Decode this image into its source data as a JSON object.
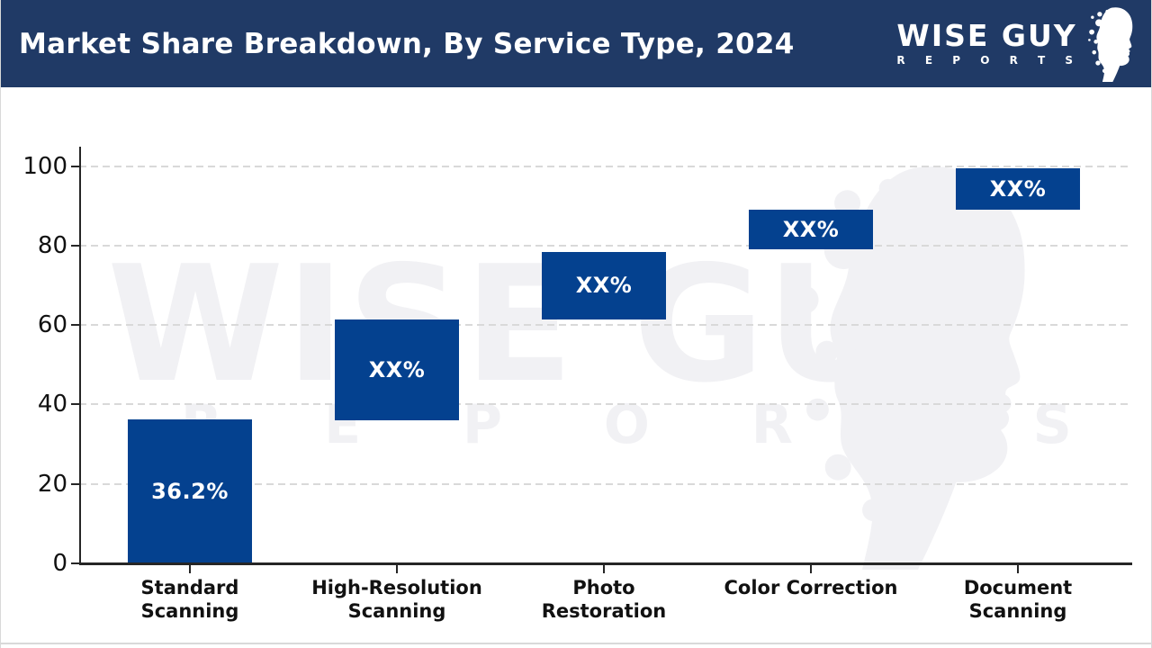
{
  "header": {
    "title": "Market Share Breakdown, By Service Type, 2024",
    "logo": {
      "wordmark": "WISE GUY",
      "subtext": "R E P O R T S"
    }
  },
  "watermark": {
    "wordmark": "WISE GUY",
    "subtext": "R E P O R T S"
  },
  "chart_data": {
    "type": "bar",
    "subtype": "waterfall",
    "title": "Market Share Breakdown, By Service Type, 2024",
    "categories": [
      "Standard Scanning",
      "High-Resolution Scanning",
      "Photo Restoration",
      "Color Correction",
      "Document Scanning"
    ],
    "bars": [
      {
        "category": "Standard Scanning",
        "start": 0,
        "end": 36.2,
        "label": "36.2%"
      },
      {
        "category": "High-Resolution Scanning",
        "start": 36,
        "end": 61.5,
        "label": "XX%"
      },
      {
        "category": "Photo Restoration",
        "start": 61.5,
        "end": 78.5,
        "label": "XX%"
      },
      {
        "category": "Color Correction",
        "start": 79,
        "end": 89,
        "label": "XX%"
      },
      {
        "category": "Document Scanning",
        "start": 89,
        "end": 99.5,
        "label": "XX%"
      }
    ],
    "yticks": [
      0,
      20,
      40,
      60,
      80,
      100
    ],
    "ylim": [
      0,
      104
    ],
    "xlabel": "",
    "ylabel": "",
    "grid": "horizontal-dashed",
    "legend": "none",
    "bar_color": "#04418f"
  },
  "colors": {
    "header_bg": "#203a66",
    "bar": "#04418f",
    "grid": "#d9d9d9",
    "axis": "#262626",
    "watermark": "#f1f1f4",
    "bar_label_text": "#ffffff",
    "frame_border": "#d9d9d9"
  }
}
